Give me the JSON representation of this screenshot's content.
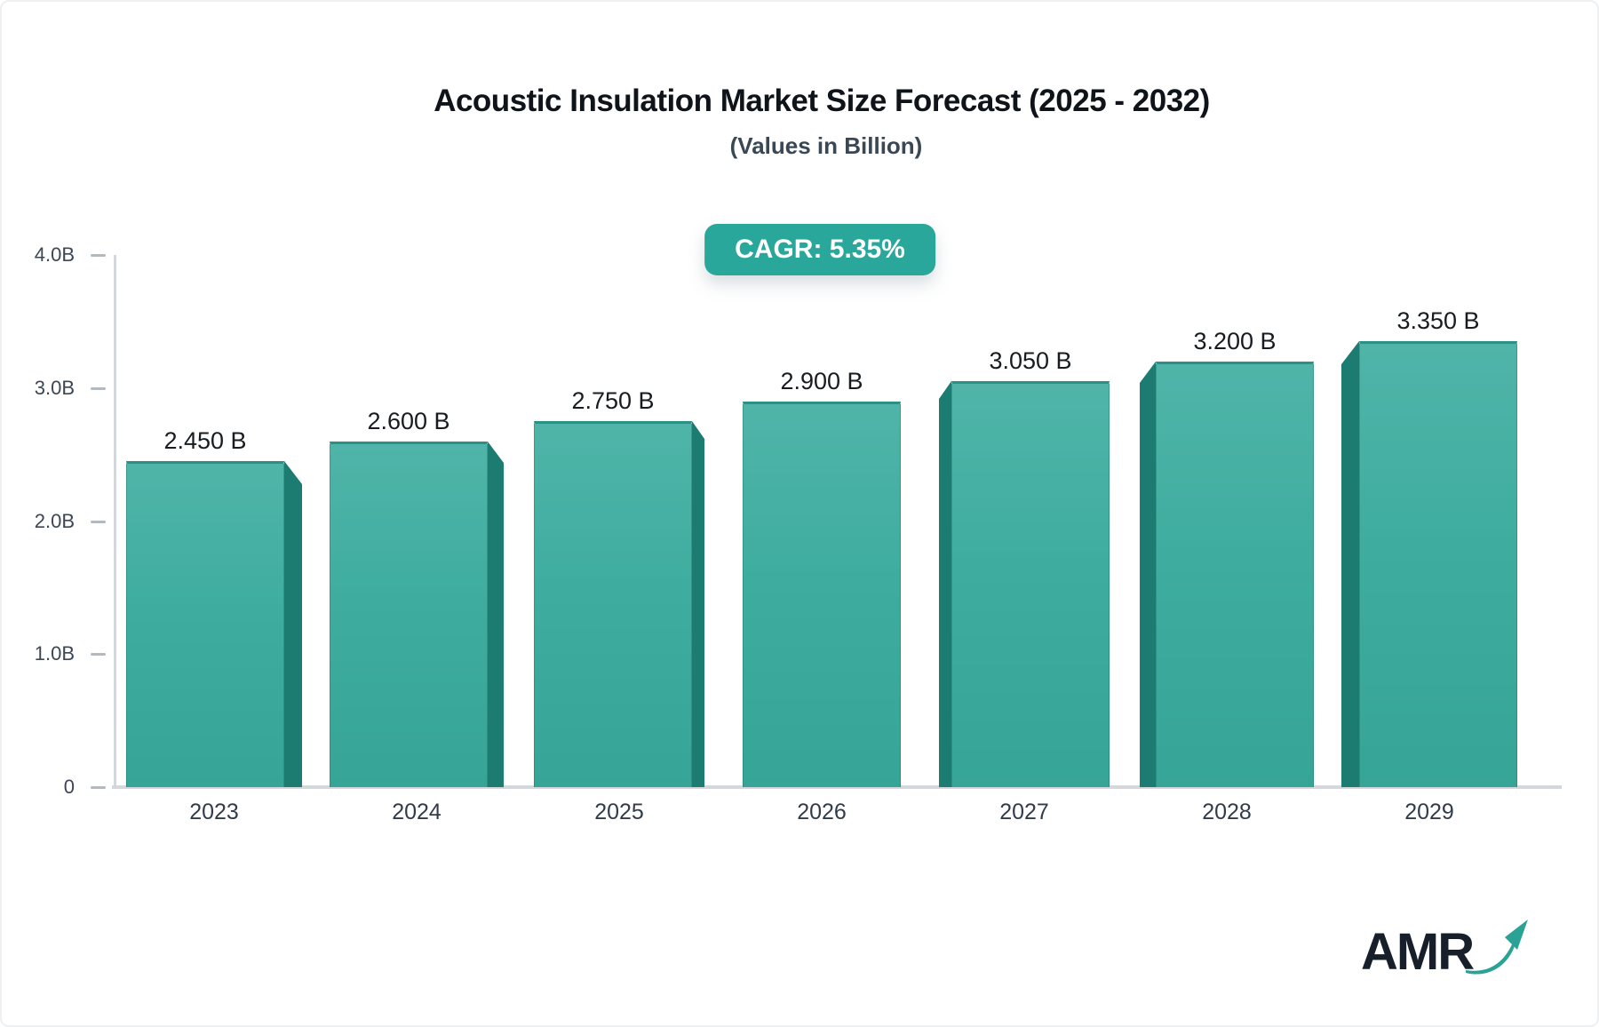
{
  "header": {
    "title": "Acoustic Insulation Market Size Forecast (2025 - 2032)",
    "subtitle": "(Values in Billion)",
    "cagr_badge": "CAGR: 5.35%"
  },
  "colors": {
    "badge_bg": "#2aa79b",
    "bar_face_top": "#50b4a9",
    "bar_face_bottom": "#36a598",
    "bar_side": "#1d7c72",
    "bar_edge": "#2b9086",
    "axis_line": "#d4d8dc",
    "tick": "#b3b9c1",
    "axis_label": "#3c4654",
    "logo_text": "#161f2a",
    "logo_arrow": "#2aa296"
  },
  "chart_data": {
    "type": "bar",
    "title": "Acoustic Insulation Market Size Forecast (2025 - 2032)",
    "subtitle": "(Values in Billion)",
    "annotation": "CAGR: 5.35%",
    "unit": "Billion",
    "categories": [
      "2023",
      "2024",
      "2025",
      "2026",
      "2027",
      "2028",
      "2029"
    ],
    "values": [
      2.45,
      2.6,
      2.75,
      2.9,
      3.05,
      3.2,
      3.35
    ],
    "value_labels": [
      "2.450 B",
      "2.600 B",
      "2.750 B",
      "2.900 B",
      "3.050 B",
      "3.200 B",
      "3.350 B"
    ],
    "ylim": [
      0,
      4
    ],
    "y_ticks": [
      {
        "value": 4,
        "label": "4.0B"
      },
      {
        "value": 3,
        "label": "3.0B"
      },
      {
        "value": 2,
        "label": "2.0B"
      },
      {
        "value": 1,
        "label": "1.0B"
      },
      {
        "value": 0,
        "label": "0"
      }
    ],
    "grid": false,
    "legend": false,
    "bar_style": "pseudo-3d, perspective radiating from center bar"
  },
  "logo": {
    "text": "AMR"
  }
}
